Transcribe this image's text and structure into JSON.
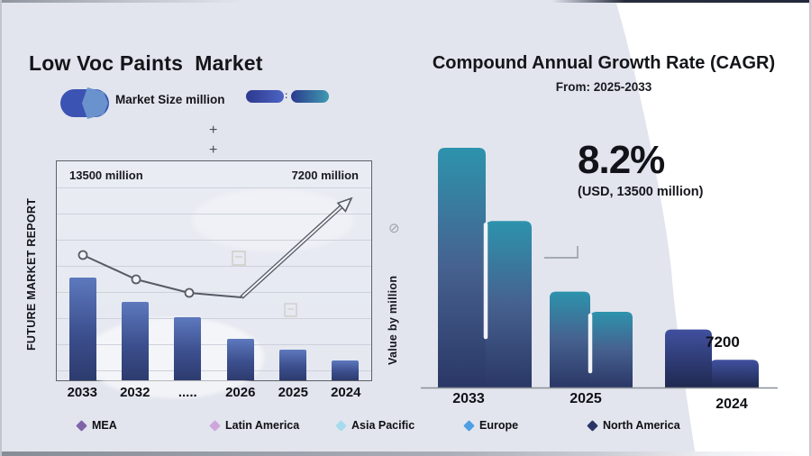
{
  "colors": {
    "background": "#e2e5ee",
    "left_bar_top": "#5d79bd",
    "left_bar_bottom": "#2d3b6e",
    "teal_bar_top": "#2d93ad",
    "teal_bar_bottom": "#2a3766",
    "navy_bar_top": "#40509f",
    "navy_bar_bottom": "#1f2950",
    "pill_left_gradient": [
      "#2c3a8e",
      "#4d63c4"
    ],
    "pill_right_gradient": [
      "#2c3a8e",
      "#3f9ab0"
    ],
    "trend_line": "#565b63"
  },
  "header": {
    "title": "Low Voc Paints  Market",
    "market_size_label": "Market Size million",
    "pill_separator": ":"
  },
  "decor": {
    "plus_top": "+",
    "plus_bottom": "+",
    "gauge_icon": "⊘"
  },
  "left_section": {
    "y_axis_label": "FUTURE MARKET REPORT"
  },
  "middle": {
    "value_axis_label": "Value by million"
  },
  "right_section": {
    "title": "Compound Annual Growth Rate (CAGR)",
    "subtitle": "From: 2025-2033",
    "cagr_value": "8.2%",
    "cagr_note": "(USD, 13500 million)"
  },
  "legend": {
    "items": [
      {
        "label": "MEA",
        "color": "#8064a8"
      },
      {
        "label": "Latin America",
        "color": "#cfa6dc"
      },
      {
        "label": "Asia Pacific",
        "color": "#a7dbee"
      },
      {
        "label": "Europe",
        "color": "#4e9ee2"
      },
      {
        "label": "North America",
        "color": "#2b3565"
      }
    ]
  },
  "chart_data": [
    {
      "type": "bar",
      "title": "Low Voc Paints Market - Market Size million",
      "categories": [
        "2033",
        "2032",
        ".....",
        "2026",
        "2025",
        "2024"
      ],
      "values_normalized_pct_of_2033": [
        100,
        76,
        61,
        40,
        30,
        19
      ],
      "bar_heights_css": [
        "114px",
        "87px",
        "70px",
        "46px",
        "34px",
        "22px"
      ],
      "annotations": {
        "top_left": "13500 million",
        "top_right": "7200 million"
      },
      "y_axis_label": "FUTURE MARKET REPORT",
      "grid": "horizontal"
    },
    {
      "type": "bar",
      "title": "Compound Annual Growth Rate (CAGR)",
      "subtitle": "From: 2025-2033",
      "cagr": "8.2%",
      "cagr_note": "(USD, 13500 million)",
      "categories": [
        "2033",
        "2025",
        "2024"
      ],
      "series": [
        {
          "name": "series-a",
          "heights_pct_of_axis": [
            95,
            38,
            23
          ]
        },
        {
          "name": "series-b",
          "heights_pct_of_axis": [
            66,
            30,
            11
          ]
        }
      ],
      "value_labels": [
        {
          "category": "2024",
          "text": "7200"
        }
      ],
      "ylabel": "Value by million"
    }
  ]
}
